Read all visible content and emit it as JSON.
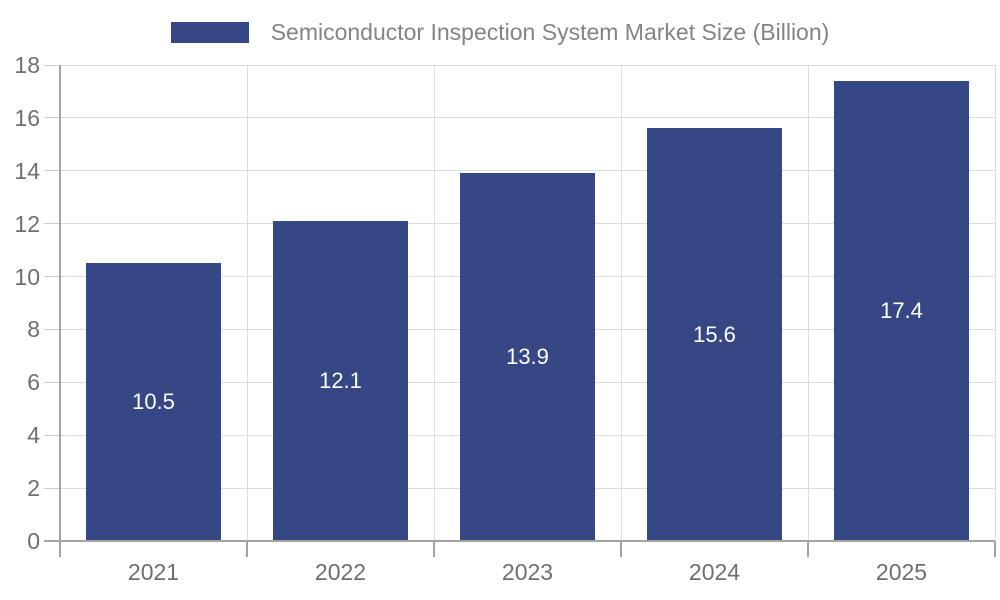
{
  "chart_data": {
    "type": "bar",
    "title": "Semiconductor Inspection System Market Size (Billion)",
    "categories": [
      "2021",
      "2022",
      "2023",
      "2024",
      "2025"
    ],
    "values": [
      10.5,
      12.1,
      13.9,
      15.6,
      17.4
    ],
    "value_labels": [
      "10.5",
      "12.1",
      "13.9",
      "15.6",
      "17.4"
    ],
    "xlabel": "",
    "ylabel": "",
    "ylim": [
      0,
      18
    ],
    "yticks": [
      0,
      2,
      4,
      6,
      8,
      10,
      12,
      14,
      16,
      18
    ],
    "grid": true,
    "legend_position": "top-center",
    "colors": {
      "bar": "#364786",
      "bar_label": "#ffffff",
      "grid": "#dddddd",
      "axis_line": "#a3a3a3",
      "minor_tick": "#cdcdcd",
      "tick_text": "#6f6f6f",
      "title_text": "#848484",
      "background": "#ffffff"
    }
  }
}
